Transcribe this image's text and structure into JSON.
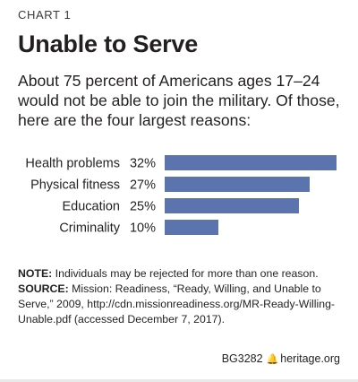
{
  "kicker": "CHART 1",
  "title": "Unable to Serve",
  "subtitle": "About 75 percent of Americans ages 17–24 would not be able to join the military. Of those, here are the four largest reasons:",
  "colors": {
    "bar": "#5b74ae",
    "text": "#231f20"
  },
  "chart_data": {
    "type": "bar",
    "orientation": "horizontal",
    "categories": [
      "Health problems",
      "Physical fitness",
      "Education",
      "Criminality"
    ],
    "values": [
      32,
      27,
      25,
      10
    ],
    "value_labels": [
      "32%",
      "27%",
      "25%",
      "10%"
    ],
    "unit": "%",
    "title": "",
    "xlabel": "",
    "ylabel": "",
    "xlim": [
      0,
      32
    ],
    "grid": false,
    "legend": "none"
  },
  "notes": {
    "note_label": "NOTE:",
    "note_text": " Individuals may be rejected for more than one reason.",
    "source_label": "SOURCE:",
    "source_text": " Mission: Readiness, “Ready, Willing, and Unable to Serve,” 2009, http://cdn.missionreadiness.org/MR-Ready-Willing-Unable.pdf (accessed December 7, 2017)."
  },
  "footer": {
    "code": "BG3282",
    "logo_icon": "liberty-bell-icon",
    "site": "heritage.org"
  }
}
